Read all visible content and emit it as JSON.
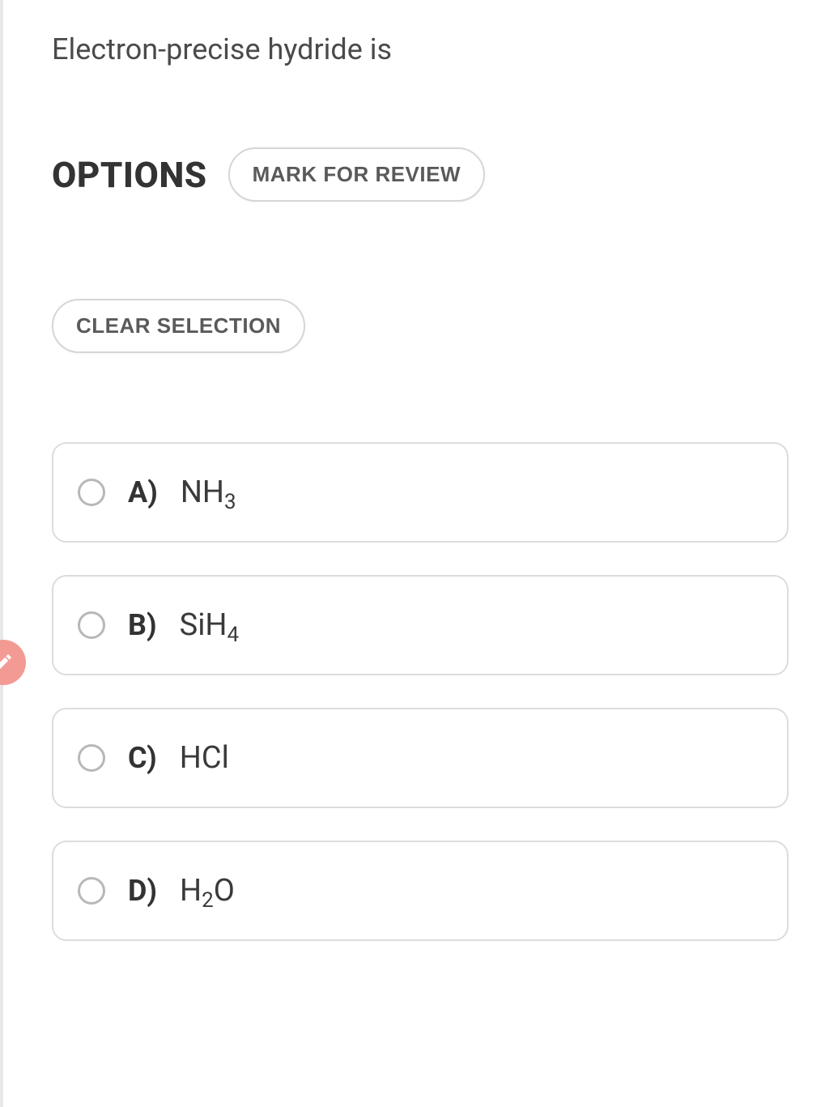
{
  "question": "Electron-precise hydride is",
  "labels": {
    "options": "OPTIONS",
    "mark_for_review": "MARK FOR REVIEW",
    "clear_selection": "CLEAR SELECTION"
  },
  "colors": {
    "text": "#4a4a4a",
    "heading": "#333333",
    "border": "#dcdcdc",
    "pill_border": "#d6d6d6",
    "radio_border": "#b8b8b8",
    "badge": "#f39a94",
    "background": "#ffffff"
  },
  "options": [
    {
      "letter": "A)",
      "base": "NH",
      "sub": "3",
      "tail": ""
    },
    {
      "letter": "B)",
      "base": "SiH",
      "sub": "4",
      "tail": ""
    },
    {
      "letter": "C)",
      "base": "HCl",
      "sub": "",
      "tail": ""
    },
    {
      "letter": "D)",
      "base": "H",
      "sub": "2",
      "tail": "O"
    }
  ]
}
